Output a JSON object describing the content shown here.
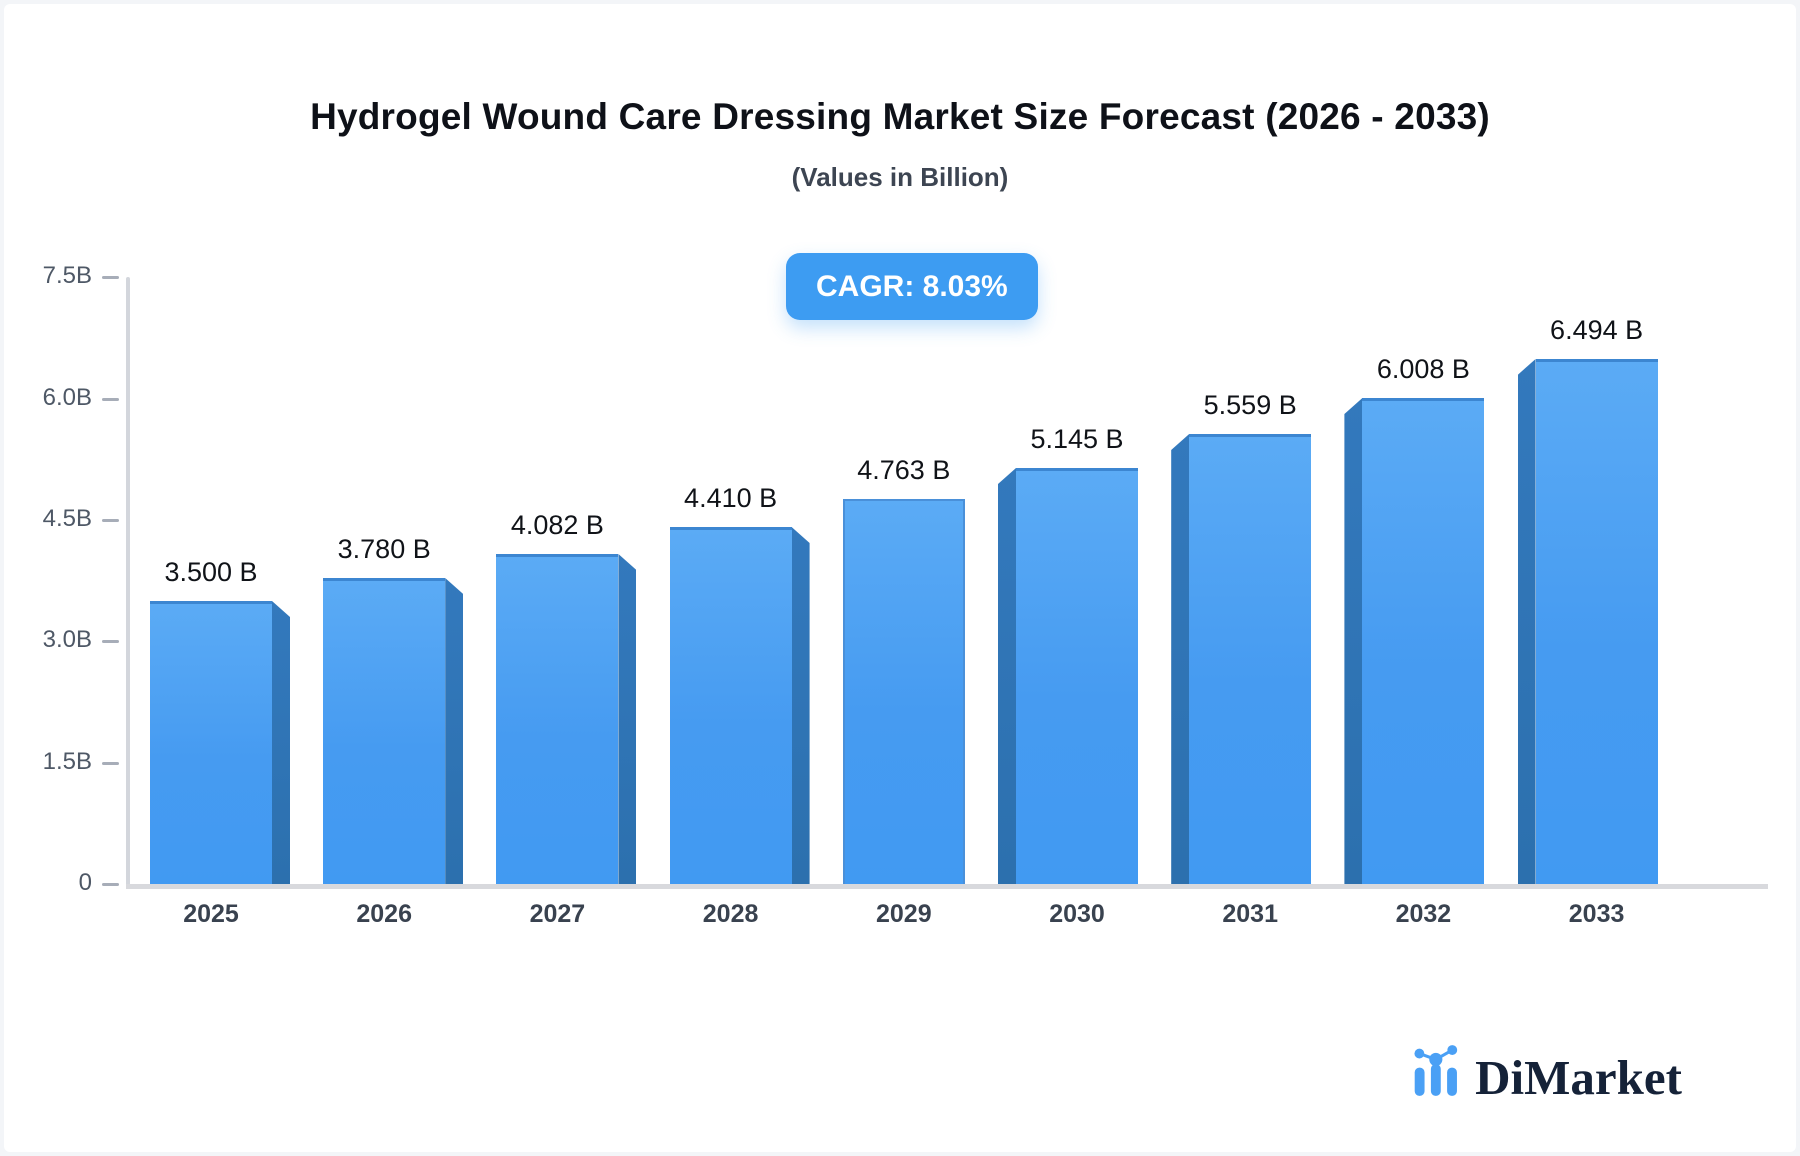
{
  "header": {
    "title": "Hydrogel Wound Care Dressing Market Size Forecast (2026 - 2033)",
    "subtitle": "(Values in Billion)",
    "cagr_label": "CAGR: 8.03%"
  },
  "chart_data": {
    "type": "bar",
    "title": "Hydrogel Wound Care Dressing Market Size Forecast (2026 - 2033)",
    "subtitle": "(Values in Billion)",
    "categories": [
      "2025",
      "2026",
      "2027",
      "2028",
      "2029",
      "2030",
      "2031",
      "2032",
      "2033"
    ],
    "values": [
      3.5,
      3.78,
      4.082,
      4.41,
      4.763,
      5.145,
      5.559,
      6.008,
      6.494
    ],
    "value_labels": [
      "3.500 B",
      "3.780 B",
      "4.082 B",
      "4.410 B",
      "4.763 B",
      "5.145 B",
      "5.559 B",
      "6.008 B",
      "6.494 B"
    ],
    "cagr_percent": "8.03%",
    "xlabel": "",
    "ylabel": "",
    "ylim": [
      0,
      7.5
    ],
    "yticks": [
      {
        "value": 7.5,
        "label": "7.5B"
      },
      {
        "value": 6.0,
        "label": "6.0B"
      },
      {
        "value": 4.5,
        "label": "4.5B"
      },
      {
        "value": 3.0,
        "label": "3.0B"
      },
      {
        "value": 1.5,
        "label": "1.5B"
      },
      {
        "value": 0,
        "label": "0"
      }
    ],
    "grid": false,
    "legend": false,
    "colors": {
      "bar_face_top": "#5babf5",
      "bar_face_bottom": "#419af2",
      "bar_side": "#2e72b3",
      "badge_background": "#3d9cf2",
      "axis_line": "#d3d6dc",
      "tick_text": "#4e5866",
      "title_text": "#0e1118"
    }
  },
  "footer": {
    "brand_name": "DiMarket",
    "brand_color": "#152238",
    "icon": "bar-line-chart-icon",
    "icon_color": "#4aa0f5"
  }
}
